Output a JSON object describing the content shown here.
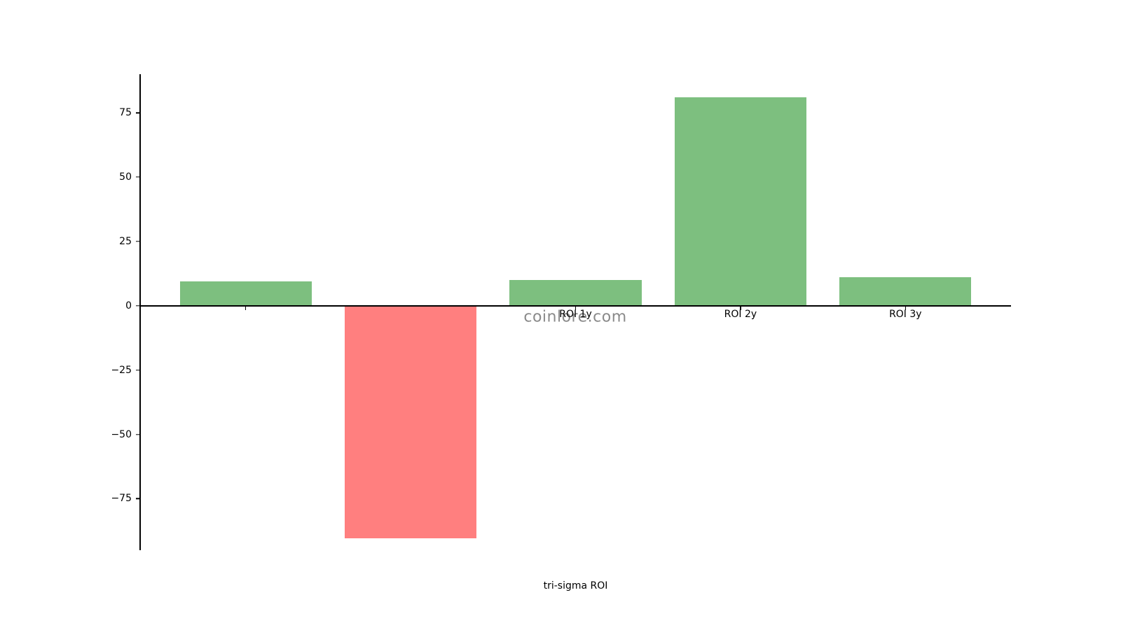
{
  "watermark": {
    "text": "coinlore.com",
    "color": "#8a8a8a"
  },
  "chart_data": {
    "type": "bar",
    "title": "",
    "xlabel": "tri-sigma ROI",
    "ylabel": "",
    "categories": [
      "",
      "",
      "ROI 1y",
      "ROI 2y",
      "ROI 3y"
    ],
    "values": [
      9.5,
      -90.5,
      10,
      81,
      11
    ],
    "bar_colors": [
      "#7dbf7f",
      "#ff7f7f",
      "#7dbf7f",
      "#7dbf7f",
      "#7dbf7f"
    ],
    "positive_color": "#7dbf7f",
    "negative_color": "#ff7f7f",
    "axis_color": "#000000",
    "y_ticks": [
      {
        "v": 75,
        "label": "75"
      },
      {
        "v": 50,
        "label": "50"
      },
      {
        "v": 25,
        "label": "25"
      },
      {
        "v": 0,
        "label": "0"
      },
      {
        "v": -25,
        "label": "−25"
      },
      {
        "v": -50,
        "label": "−50"
      },
      {
        "v": -75,
        "label": "−75"
      }
    ],
    "ylim": [
      -95,
      90
    ],
    "xlim": [
      -0.64,
      4.64
    ],
    "bar_width": 0.8,
    "grid": false,
    "legend": null
  }
}
